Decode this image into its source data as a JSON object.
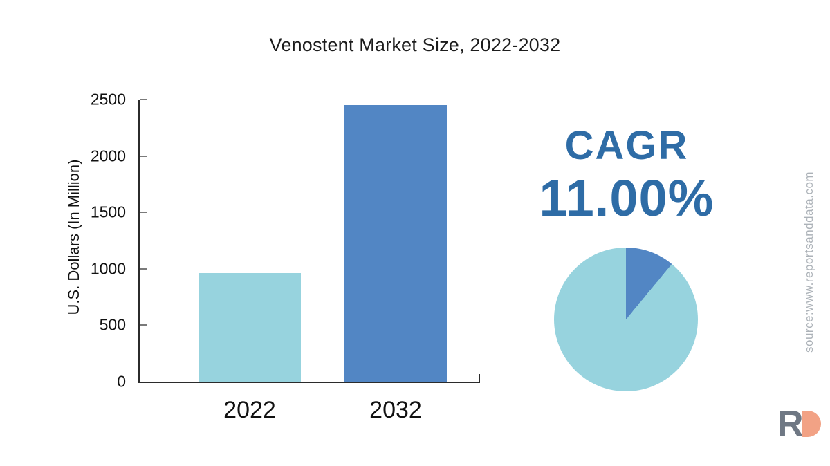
{
  "chart_data": {
    "type": "bar",
    "title": "Venostent Market Size, 2022-2032",
    "xlabel": "",
    "ylabel": "U.S. Dollars (In Million)",
    "categories": [
      "2022",
      "2032"
    ],
    "values": [
      960,
      2450
    ],
    "bar_colors": [
      "#97D3DE",
      "#5286C4"
    ],
    "ylim": [
      0,
      2500
    ],
    "yticks": [
      0,
      500,
      1000,
      1500,
      2000,
      2500
    ],
    "grid": false,
    "legend": "none",
    "axis_color": "#2b2b2b",
    "tick_color": "#7a7a7a"
  },
  "cagr": {
    "label": "CAGR",
    "value": "11.00%",
    "color": "#2E6CA6",
    "pie": {
      "percent": 11,
      "slice_color": "#5286C4",
      "remainder_color": "#97D3DE"
    }
  },
  "source": {
    "text": "source:www.reportsanddata.com",
    "color": "#ACB2B8"
  },
  "logo": {
    "letter_r": "R",
    "r_color": "#6F7884",
    "d_color": "#F2A285"
  }
}
